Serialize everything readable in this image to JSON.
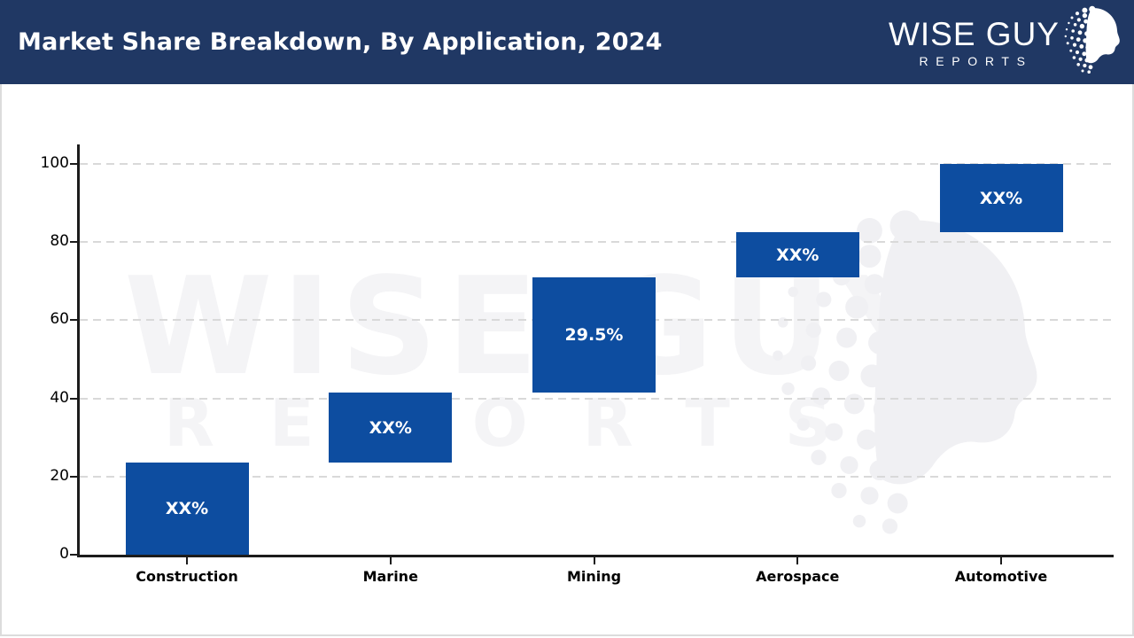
{
  "header": {
    "title": "Market Share Breakdown, By Application, 2024",
    "bg_color": "#203864",
    "logo": {
      "line1": "WISE GUY",
      "line2": "REPORTS"
    }
  },
  "watermark": {
    "line1": "WISE GUY",
    "line2": "REPORTS"
  },
  "chart_data": {
    "type": "bar",
    "subtype": "waterfall",
    "title": "Market Share Breakdown, By Application, 2024",
    "categories": [
      "Construction",
      "Marine",
      "Mining",
      "Aerospace",
      "Automotive"
    ],
    "series": [
      {
        "name": "Market Share (%)",
        "segments": [
          {
            "category": "Construction",
            "start": 0,
            "end": 23.5,
            "value": 23.5,
            "label": "XX%"
          },
          {
            "category": "Marine",
            "start": 23.5,
            "end": 41.5,
            "value": 18,
            "label": "XX%"
          },
          {
            "category": "Mining",
            "start": 41.5,
            "end": 71,
            "value": 29.5,
            "label": "29.5%"
          },
          {
            "category": "Aerospace",
            "start": 71,
            "end": 82.5,
            "value": 11.5,
            "label": "XX%"
          },
          {
            "category": "Automotive",
            "start": 82.5,
            "end": 100,
            "value": 17.5,
            "label": "XX%"
          }
        ]
      }
    ],
    "xlabel": "",
    "ylabel": "",
    "ylim": [
      0,
      100
    ],
    "yticks": [
      0,
      20,
      40,
      60,
      80,
      100
    ],
    "grid": "horizontal dashed",
    "legend": "none",
    "bar_color": "#0d4da0",
    "bar_label_color": "#ffffff",
    "axis_color": "#1c1c1c"
  }
}
